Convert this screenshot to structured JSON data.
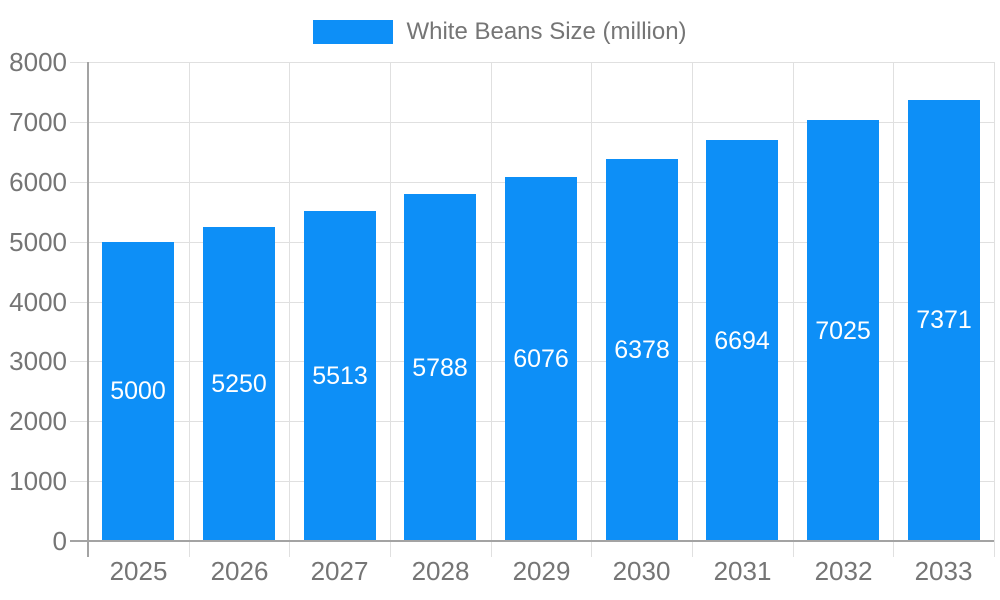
{
  "legend": {
    "label": "White Beans Size (million)"
  },
  "colors": {
    "bar": "#0d8ff7",
    "axis_text": "#757575",
    "gridline": "#e0e0e0",
    "axis_line": "#a3a3a3",
    "value_label": "#ffffff"
  },
  "chart_data": {
    "type": "bar",
    "title": "White Beans Size (million)",
    "categories": [
      "2025",
      "2026",
      "2027",
      "2028",
      "2029",
      "2030",
      "2031",
      "2032",
      "2033"
    ],
    "values": [
      5000,
      5250,
      5513,
      5788,
      6076,
      6378,
      6694,
      7025,
      7371
    ],
    "xlabel": "",
    "ylabel": "",
    "ylim": [
      0,
      8000
    ],
    "y_tick_step": 1000,
    "y_tick_labels": [
      "0",
      "1000",
      "2000",
      "3000",
      "4000",
      "5000",
      "6000",
      "7000",
      "8000"
    ],
    "grid": true,
    "legend_position": "top",
    "value_labels": "inside-center"
  }
}
